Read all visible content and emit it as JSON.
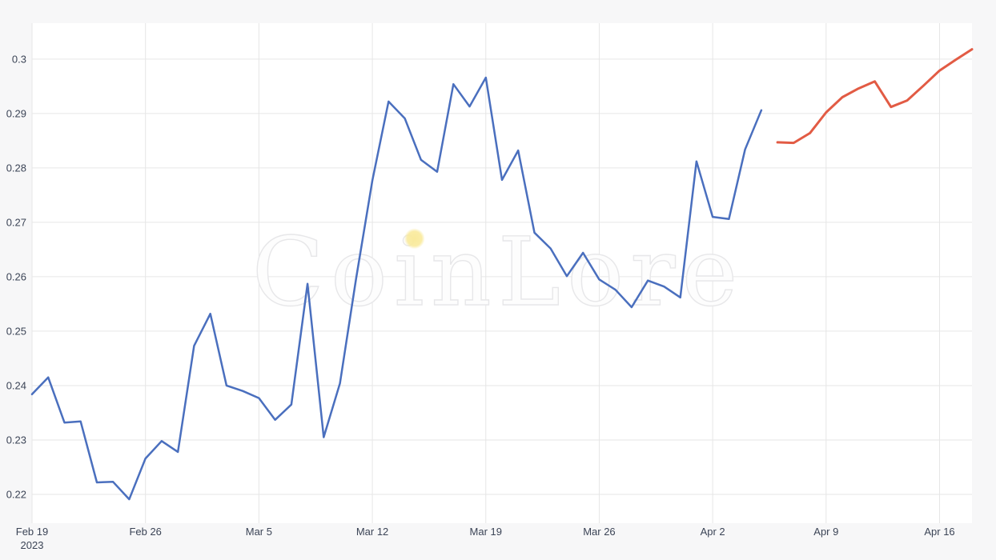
{
  "page": {
    "background_color": "#f7f7f8",
    "plot_background_color": "#ffffff",
    "gridline_color": "#e6e6e6",
    "axis_label_color": "#3b4456"
  },
  "chart_data": {
    "type": "line",
    "title": "",
    "watermark": {
      "text": "CoinLore"
    },
    "legend": "none",
    "grid": "on",
    "x_axis": {
      "unit": "days",
      "day_range": [
        0,
        58
      ],
      "ticks": [
        {
          "label": "Feb 19",
          "sublabel": "2023",
          "day": 0
        },
        {
          "label": "Feb 26",
          "day": 7
        },
        {
          "label": "Mar 5",
          "day": 14
        },
        {
          "label": "Mar 12",
          "day": 21
        },
        {
          "label": "Mar 19",
          "day": 28
        },
        {
          "label": "Mar 26",
          "day": 35
        },
        {
          "label": "Apr 2",
          "day": 42
        },
        {
          "label": "Apr 9",
          "day": 49
        },
        {
          "label": "Apr 16",
          "day": 56
        }
      ]
    },
    "y_axis": {
      "range": [
        0.2147,
        0.3066
      ],
      "ticks": [
        {
          "label": "0.22",
          "value": 0.22
        },
        {
          "label": "0.23",
          "value": 0.23
        },
        {
          "label": "0.24",
          "value": 0.24
        },
        {
          "label": "0.25",
          "value": 0.25
        },
        {
          "label": "0.26",
          "value": 0.26
        },
        {
          "label": "0.27",
          "value": 0.27
        },
        {
          "label": "0.28",
          "value": 0.28
        },
        {
          "label": "0.29",
          "value": 0.29
        },
        {
          "label": "0.3",
          "value": 0.3
        }
      ]
    },
    "series": [
      {
        "name": "historical-price",
        "color": "#4a6fbe",
        "stroke_width": 2.5,
        "points": [
          {
            "date": "Feb 19",
            "day": 0,
            "value": 0.2384
          },
          {
            "date": "Feb 20",
            "day": 1,
            "value": 0.2415
          },
          {
            "date": "Feb 21",
            "day": 2,
            "value": 0.2332
          },
          {
            "date": "Feb 22",
            "day": 3,
            "value": 0.2334
          },
          {
            "date": "Feb 23",
            "day": 4,
            "value": 0.2222
          },
          {
            "date": "Feb 24",
            "day": 5,
            "value": 0.2223
          },
          {
            "date": "Feb 25",
            "day": 6,
            "value": 0.2191
          },
          {
            "date": "Feb 26",
            "day": 7,
            "value": 0.2266
          },
          {
            "date": "Feb 27",
            "day": 8,
            "value": 0.2298
          },
          {
            "date": "Feb 28",
            "day": 9,
            "value": 0.2278
          },
          {
            "date": "Mar 1",
            "day": 10,
            "value": 0.2473
          },
          {
            "date": "Mar 2",
            "day": 11,
            "value": 0.2532
          },
          {
            "date": "Mar 3",
            "day": 12,
            "value": 0.24
          },
          {
            "date": "Mar 4",
            "day": 13,
            "value": 0.239
          },
          {
            "date": "Mar 5",
            "day": 14,
            "value": 0.2377
          },
          {
            "date": "Mar 6",
            "day": 15,
            "value": 0.2337
          },
          {
            "date": "Mar 7",
            "day": 16,
            "value": 0.2365
          },
          {
            "date": "Mar 8",
            "day": 17,
            "value": 0.2587
          },
          {
            "date": "Mar 9",
            "day": 18,
            "value": 0.2305
          },
          {
            "date": "Mar 10",
            "day": 19,
            "value": 0.2404
          },
          {
            "date": "Mar 11",
            "day": 20,
            "value": 0.2597
          },
          {
            "date": "Mar 12",
            "day": 21,
            "value": 0.2777
          },
          {
            "date": "Mar 13",
            "day": 22,
            "value": 0.2922
          },
          {
            "date": "Mar 14",
            "day": 23,
            "value": 0.2891
          },
          {
            "date": "Mar 15",
            "day": 24,
            "value": 0.2815
          },
          {
            "date": "Mar 16",
            "day": 25,
            "value": 0.2793
          },
          {
            "date": "Mar 17",
            "day": 26,
            "value": 0.2954
          },
          {
            "date": "Mar 18",
            "day": 27,
            "value": 0.2913
          },
          {
            "date": "Mar 19",
            "day": 28,
            "value": 0.2966
          },
          {
            "date": "Mar 20",
            "day": 29,
            "value": 0.2778
          },
          {
            "date": "Mar 21",
            "day": 30,
            "value": 0.2832
          },
          {
            "date": "Mar 22",
            "day": 31,
            "value": 0.2681
          },
          {
            "date": "Mar 23",
            "day": 32,
            "value": 0.2652
          },
          {
            "date": "Mar 24",
            "day": 33,
            "value": 0.2601
          },
          {
            "date": "Mar 25",
            "day": 34,
            "value": 0.2644
          },
          {
            "date": "Mar 26",
            "day": 35,
            "value": 0.2595
          },
          {
            "date": "Mar 27",
            "day": 36,
            "value": 0.2576
          },
          {
            "date": "Mar 28",
            "day": 37,
            "value": 0.2544
          },
          {
            "date": "Mar 29",
            "day": 38,
            "value": 0.2593
          },
          {
            "date": "Mar 30",
            "day": 39,
            "value": 0.2582
          },
          {
            "date": "Mar 31",
            "day": 40,
            "value": 0.2562
          },
          {
            "date": "Apr 1",
            "day": 41,
            "value": 0.2812
          },
          {
            "date": "Apr 2",
            "day": 42,
            "value": 0.271
          },
          {
            "date": "Apr 3",
            "day": 43,
            "value": 0.2706
          },
          {
            "date": "Apr 4",
            "day": 44,
            "value": 0.2834
          },
          {
            "date": "Apr 5",
            "day": 45,
            "value": 0.2906
          }
        ]
      },
      {
        "name": "forecast-price",
        "color": "#e25b44",
        "stroke_width": 3,
        "points": [
          {
            "date": "Apr 6",
            "day": 46,
            "value": 0.2847
          },
          {
            "date": "Apr 7",
            "day": 47,
            "value": 0.2846
          },
          {
            "date": "Apr 8",
            "day": 48,
            "value": 0.2864
          },
          {
            "date": "Apr 9",
            "day": 49,
            "value": 0.2902
          },
          {
            "date": "Apr 10",
            "day": 50,
            "value": 0.293
          },
          {
            "date": "Apr 11",
            "day": 51,
            "value": 0.2946
          },
          {
            "date": "Apr 12",
            "day": 52,
            "value": 0.2959
          },
          {
            "date": "Apr 13",
            "day": 53,
            "value": 0.2912
          },
          {
            "date": "Apr 14",
            "day": 54,
            "value": 0.2924
          },
          {
            "date": "Apr 15",
            "day": 55,
            "value": 0.2951
          },
          {
            "date": "Apr 16",
            "day": 56,
            "value": 0.2979
          },
          {
            "date": "Apr 17",
            "day": 57,
            "value": 0.2999
          },
          {
            "date": "Apr 18",
            "day": 58,
            "value": 0.3018
          }
        ]
      }
    ],
    "highlight_dot": {
      "day": 23.6,
      "value": 0.267,
      "color": "#f9ea9c",
      "radius": 11
    }
  }
}
